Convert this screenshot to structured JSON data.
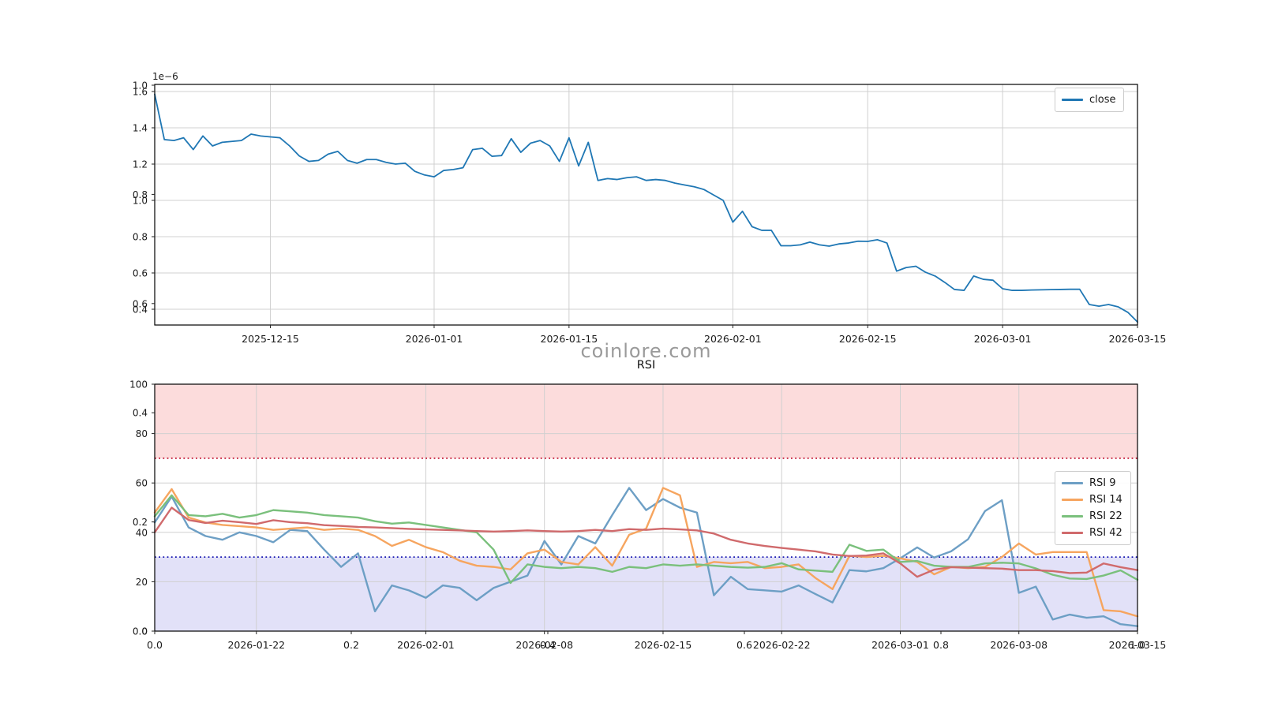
{
  "watermark": "coinlore.com",
  "colors": {
    "grid": "#d0d0d0",
    "frame": "#000000",
    "tick_text": "#1a1a1a",
    "overbought_band": "#fcdcdc",
    "oversold_band": "#e2e1f8",
    "overbought_line": "#c41230",
    "oversold_line": "#1515b0"
  },
  "chart_data": [
    {
      "type": "line",
      "title": "",
      "y_offset_label": "1e−6",
      "ylim": [
        0.313,
        1.639
      ],
      "y_ticks": [
        "1.6",
        "1.4",
        "1.2",
        "1.0",
        "0.8",
        "0.6",
        "0.4"
      ],
      "y_tick_values": [
        1.6,
        1.4,
        1.2,
        1.0,
        0.8,
        0.6,
        0.4
      ],
      "x_tick_labels": [
        "2025-12-15",
        "2026-01-01",
        "2026-01-15",
        "2026-02-01",
        "2026-02-15",
        "2026-03-01",
        "2026-03-15"
      ],
      "x_tick_index": [
        12,
        29,
        43,
        60,
        74,
        88,
        102
      ],
      "grid": true,
      "legend_position": "upper right",
      "series": [
        {
          "name": "close",
          "color": "#1f77b4",
          "values": [
            1.585,
            1.335,
            1.33,
            1.345,
            1.28,
            1.355,
            1.3,
            1.32,
            1.325,
            1.33,
            1.365,
            1.355,
            1.35,
            1.345,
            1.3,
            1.245,
            1.215,
            1.22,
            1.255,
            1.27,
            1.22,
            1.205,
            1.225,
            1.225,
            1.21,
            1.2,
            1.205,
            1.16,
            1.14,
            1.13,
            1.165,
            1.17,
            1.18,
            1.28,
            1.287,
            1.243,
            1.247,
            1.34,
            1.265,
            1.315,
            1.33,
            1.3,
            1.215,
            1.345,
            1.19,
            1.32,
            1.11,
            1.12,
            1.115,
            1.125,
            1.13,
            1.11,
            1.115,
            1.11,
            1.095,
            1.085,
            1.075,
            1.06,
            1.03,
            1.0,
            0.88,
            0.94,
            0.855,
            0.835,
            0.835,
            0.75,
            0.75,
            0.755,
            0.77,
            0.755,
            0.748,
            0.76,
            0.765,
            0.775,
            0.774,
            0.783,
            0.765,
            0.61,
            0.63,
            0.637,
            0.604,
            0.583,
            0.548,
            0.509,
            0.504,
            0.583,
            0.565,
            0.56,
            0.513,
            0.504,
            0.504,
            0.506,
            0.507,
            0.508,
            0.509,
            0.51,
            0.51,
            0.426,
            0.417,
            0.426,
            0.413,
            0.383,
            0.33
          ]
        }
      ]
    },
    {
      "type": "line",
      "title": "RSI",
      "ylim": [
        0,
        100
      ],
      "y_ticks": [
        "100",
        "80",
        "60",
        "40",
        "20",
        "0"
      ],
      "y_tick_values": [
        100,
        80,
        60,
        40,
        20,
        0
      ],
      "x_tick_labels": [
        "2026-01-22",
        "2026-02-01",
        "2026-02-08",
        "2026-02-15",
        "2026-02-22",
        "2026-03-01",
        "2026-03-08",
        "2026-03-15"
      ],
      "x_tick_index": [
        6,
        16,
        23,
        30,
        37,
        44,
        51,
        58
      ],
      "grid": true,
      "legend_position": "right",
      "overbought_level": 70,
      "oversold_level": 30,
      "series": [
        {
          "name": "RSI 9",
          "color": "#6d9fc5",
          "values": [
            44,
            54.5,
            42,
            38.5,
            37,
            40,
            38.5,
            36,
            41,
            40.5,
            33,
            26,
            31.5,
            8,
            18.5,
            16.5,
            13.5,
            18.5,
            17.5,
            12.5,
            17.5,
            20,
            22.5,
            36.5,
            27,
            38.5,
            35.5,
            47,
            58,
            49,
            53.5,
            50,
            48,
            14.5,
            22,
            17,
            16.5,
            16,
            18.5,
            15,
            11.6,
            24.7,
            24.2,
            25.5,
            29.5,
            33.9,
            29.8,
            32.3,
            37.2,
            48.6,
            53,
            15.5,
            18,
            4.7,
            6.7,
            5.4,
            6,
            2.8,
            2
          ]
        },
        {
          "name": "RSI 14",
          "color": "#f6a55f",
          "values": [
            48,
            57.5,
            46,
            44,
            43,
            42.5,
            42,
            41,
            41.5,
            42,
            41,
            41.5,
            41,
            38.5,
            34.5,
            37,
            34,
            32,
            28.5,
            26.5,
            26,
            25,
            31.5,
            33,
            28,
            27,
            34,
            26.5,
            39,
            41.5,
            58,
            55,
            26,
            28,
            27.5,
            28,
            25.5,
            26,
            27,
            21.5,
            17,
            30.5,
            30,
            30.5,
            29.5,
            28,
            23,
            26,
            25.5,
            26,
            30,
            35.5,
            31,
            32,
            32,
            32,
            8.5,
            8,
            6
          ]
        },
        {
          "name": "RSI 22",
          "color": "#7ac07c",
          "values": [
            46.5,
            55,
            47,
            46.5,
            47.5,
            46,
            47,
            49,
            48.5,
            48,
            47,
            46.5,
            46,
            44.5,
            43.5,
            44,
            43,
            42,
            41,
            40,
            33,
            19.5,
            27,
            26,
            25.5,
            26,
            25.5,
            24,
            26,
            25.5,
            27,
            26.5,
            27,
            26.5,
            26,
            25.7,
            26,
            27.5,
            25,
            24.5,
            24,
            35,
            32.5,
            33,
            28,
            28.4,
            26.5,
            26,
            26,
            27.4,
            27.7,
            27.4,
            25.4,
            22.8,
            21.3,
            21.1,
            22.5,
            24.6,
            20.8
          ]
        },
        {
          "name": "RSI 42",
          "color": "#d06a6c",
          "values": [
            40,
            50,
            45,
            43.8,
            44.7,
            44.1,
            43.4,
            44.9,
            44.1,
            43.7,
            42.9,
            42.6,
            42.2,
            42,
            41.7,
            41.4,
            41.2,
            41,
            40.8,
            40.5,
            40.3,
            40.5,
            40.8,
            40.5,
            40.3,
            40.5,
            41,
            40.5,
            41.3,
            41,
            41.5,
            41.2,
            40.8,
            39.5,
            37,
            35.5,
            34.5,
            33.7,
            33,
            32.3,
            31,
            30.4,
            30.6,
            31.5,
            27.4,
            22,
            24.9,
            25.9,
            25.7,
            25.5,
            25.3,
            24.7,
            24.7,
            24.3,
            23.5,
            23.7,
            27.4,
            25.9,
            24.7
          ]
        }
      ]
    }
  ],
  "overlay_axis": {
    "x_ticks": [
      "0.0",
      "0.2",
      "0.4",
      "0.6",
      "0.8",
      "1.0"
    ],
    "y_ticks": [
      "1.0",
      "0.8",
      "0.6",
      "0.4",
      "0.2",
      "0.0"
    ]
  }
}
